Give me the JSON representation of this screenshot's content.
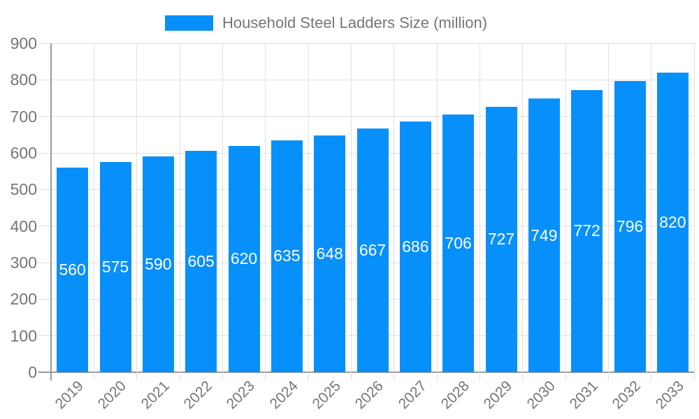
{
  "legend": {
    "label": "Household Steel Ladders Size (million)"
  },
  "colors": {
    "bar": "#0890fa",
    "grid": "#e0e0e0",
    "axis": "#999999",
    "text": "#757575",
    "value_label": "#ffffff",
    "background": "#ffffff"
  },
  "chart_data": {
    "type": "bar",
    "title": "Household Steel Ladders Size (million)",
    "categories": [
      "2019",
      "2020",
      "2021",
      "2022",
      "2023",
      "2024",
      "2025",
      "2026",
      "2027",
      "2028",
      "2029",
      "2030",
      "2031",
      "2032",
      "2033"
    ],
    "values": [
      560,
      575,
      590,
      605,
      620,
      635,
      648,
      667,
      686,
      706,
      727,
      749,
      772,
      796,
      820
    ],
    "xlabel": "",
    "ylabel": "",
    "ylim": [
      0,
      900
    ],
    "yticks": [
      0,
      100,
      200,
      300,
      400,
      500,
      600,
      700,
      800,
      900
    ],
    "grid": true,
    "legend_position": "top",
    "value_labels_position": "center-of-bar",
    "x_label_rotation_deg": -45
  }
}
